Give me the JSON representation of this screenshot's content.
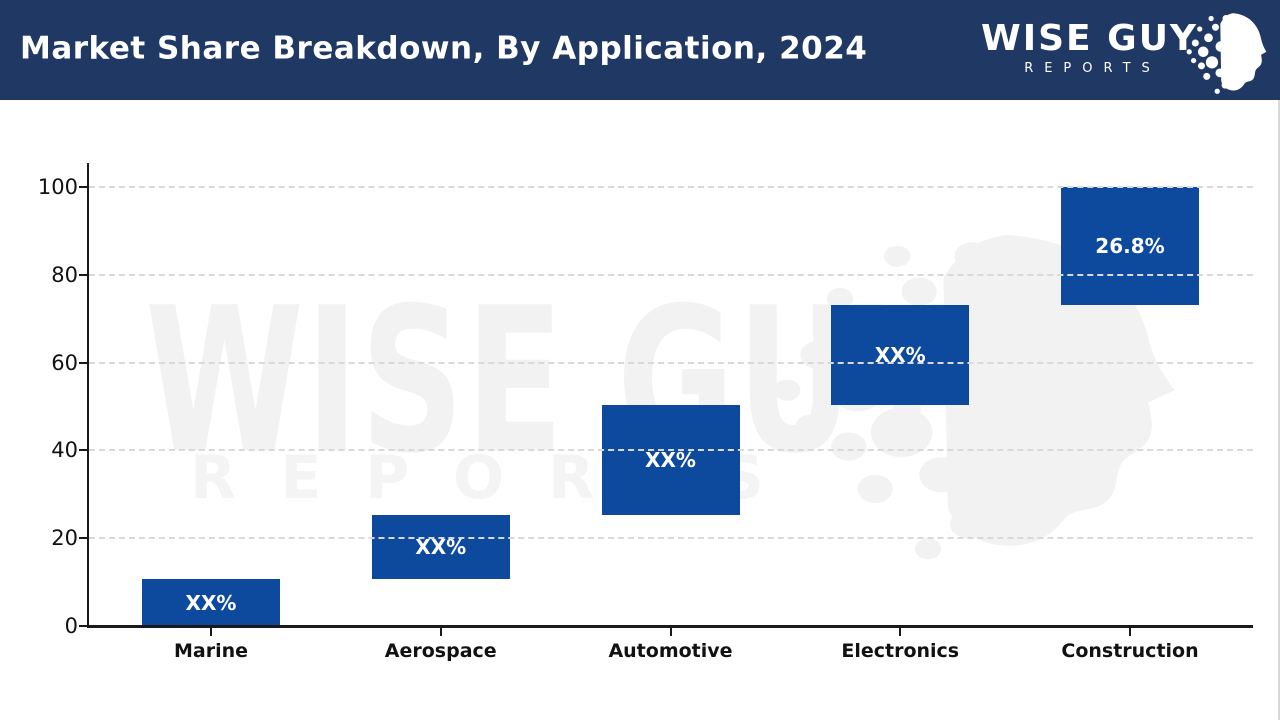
{
  "header": {
    "title": "Market Share Breakdown, By Application, 2024",
    "logo": {
      "line1": "WISE GUY",
      "line2": "REPORTS"
    },
    "bg_color": "#203864"
  },
  "watermark": {
    "line1": "WISE GUY",
    "line2": "REPORTS"
  },
  "chart_data": {
    "type": "bar",
    "subtype": "waterfall-floating-bars",
    "title": "Market Share Breakdown, By Application, 2024",
    "categories": [
      "Marine",
      "Aerospace",
      "Automotive",
      "Electronics",
      "Construction"
    ],
    "segments": [
      {
        "category": "Marine",
        "start": 0,
        "end": 10.7,
        "label": "XX%"
      },
      {
        "category": "Aerospace",
        "start": 10.7,
        "end": 25.3,
        "label": "XX%"
      },
      {
        "category": "Automotive",
        "start": 25.3,
        "end": 50.3,
        "label": "XX%"
      },
      {
        "category": "Electronics",
        "start": 50.3,
        "end": 73.2,
        "label": "XX%"
      },
      {
        "category": "Construction",
        "start": 73.2,
        "end": 100,
        "label": "26.8%"
      }
    ],
    "xlabel": "",
    "ylabel": "",
    "ylim": [
      0,
      100
    ],
    "yticks": [
      0,
      20,
      40,
      60,
      80,
      100
    ],
    "grid": true,
    "grid_style": "dashed",
    "grid_color": "#d9d9d9",
    "legend": "none",
    "bar_color": "#0d4a9e",
    "bar_label_color": "#ffffff",
    "axis_color": "#1a1a1a"
  }
}
